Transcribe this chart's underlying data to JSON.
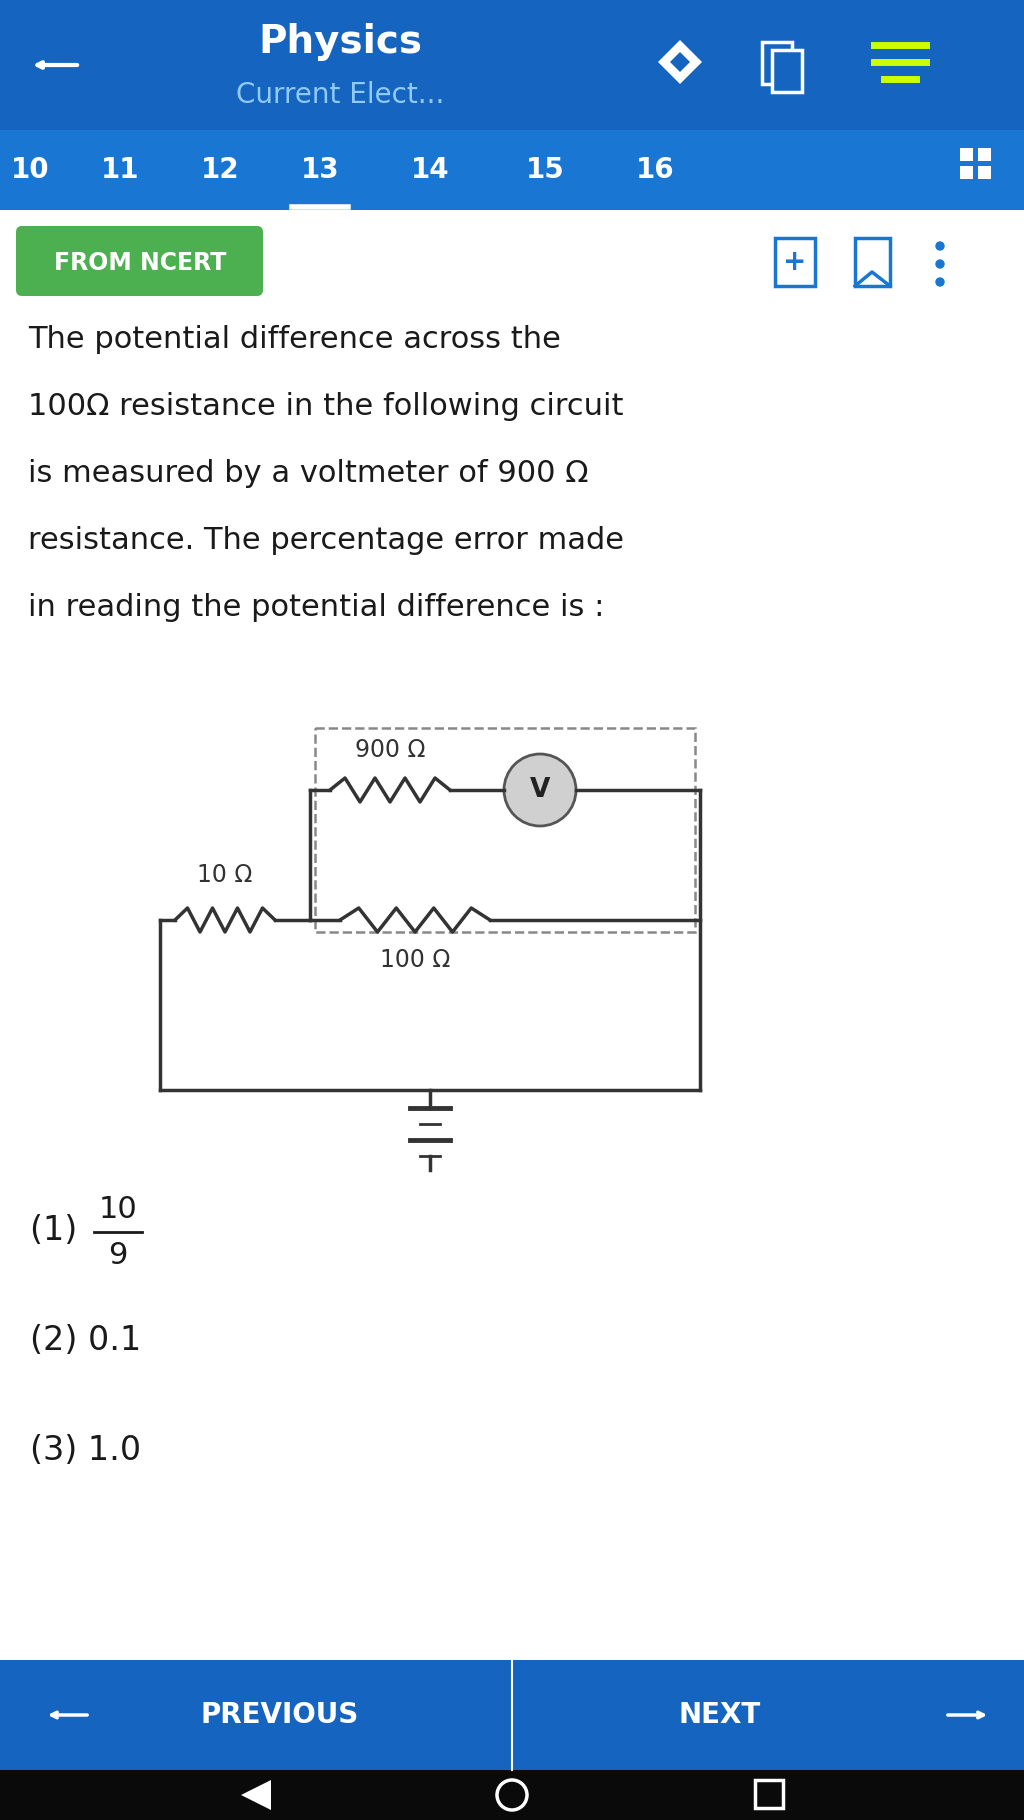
{
  "header_bg_color": "#1565C0",
  "header_title": "Physics",
  "header_subtitle": "Current Elect...",
  "tab_bg_color": "#1976D2",
  "tab_numbers": [
    "10",
    "11",
    "12",
    "13",
    "14",
    "15",
    "16"
  ],
  "tab_selected": "13",
  "from_ncert_bg": "#4CAF50",
  "from_ncert_text": "FROM NCERT",
  "question_text_line1": "The potential difference across the",
  "question_text_line2": "100Ω resistance in the following circuit",
  "question_text_line3": "is measured by a voltmeter of 900 Ω",
  "question_text_line4": "resistance. The percentage error made",
  "question_text_line5": "in reading the potential difference is :",
  "option1_prefix": "(1) ",
  "option1_num": "10",
  "option1_den": "9",
  "option2": "(2) 0.1",
  "option3": "(3) 1.0",
  "bottom_bar_color": "#1565C0",
  "prev_text": "PREVIOUS",
  "next_text": "NEXT",
  "bg_color": "#FFFFFF",
  "circuit_line_color": "#333333",
  "dashed_box_color": "#888888",
  "resistor_900_label": "900 Ω",
  "resistor_100_label": "100 Ω",
  "resistor_10_label": "10 Ω"
}
